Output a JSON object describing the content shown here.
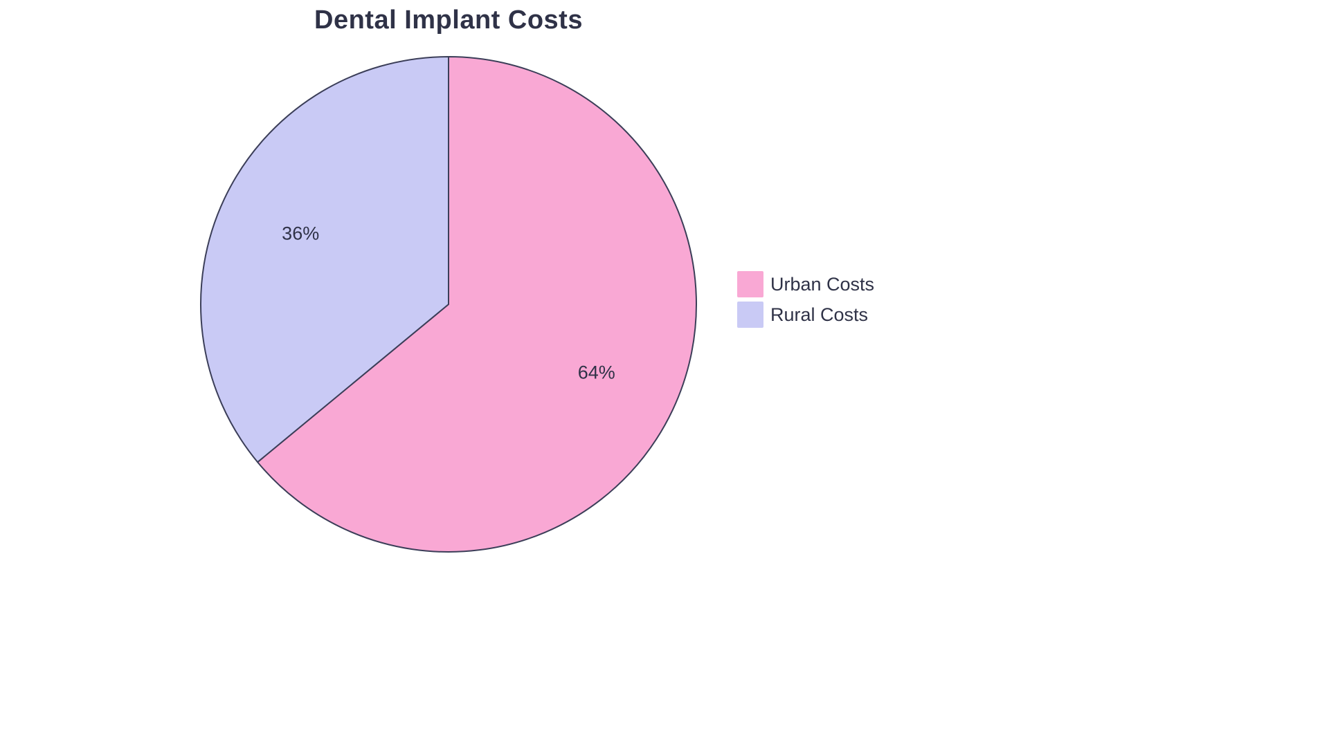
{
  "chart_data": {
    "type": "pie",
    "title": "Dental Implant Costs",
    "categories": [
      "Urban Costs",
      "Rural Costs"
    ],
    "values": [
      64,
      36
    ],
    "labels": [
      "64%",
      "36%"
    ],
    "colors": [
      "#F9A8D4",
      "#C9CAF5"
    ],
    "start_angle_deg": 0,
    "direction": "clockwise",
    "legend_position": "right"
  },
  "style_colors": {
    "slice_stroke": "#3B3E58",
    "text": "#2F3247",
    "background": "#FFFFFF"
  }
}
